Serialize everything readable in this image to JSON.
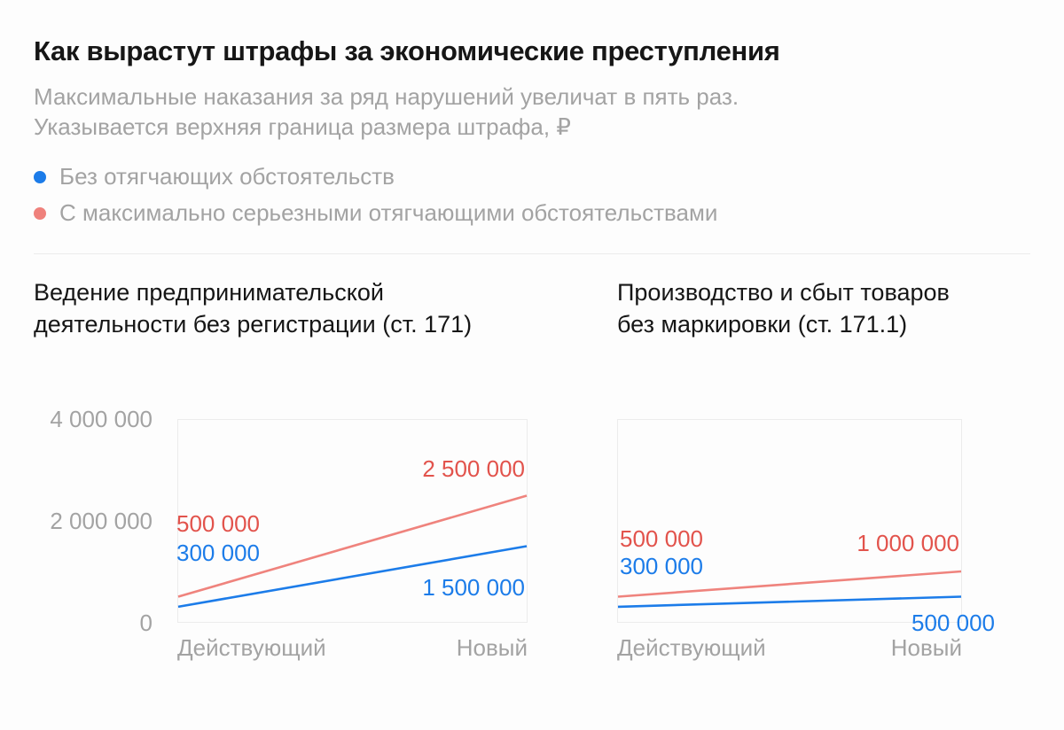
{
  "header": {
    "title": "Как вырастут штрафы за экономические преступления",
    "subtitle_line1": "Максимальные наказания за ряд нарушений увеличат в пять раз.",
    "subtitle_line2": "Указывается верхняя граница размера штрафа, ₽"
  },
  "legend": {
    "items": [
      {
        "label": "Без отягчающих обстоятельств",
        "color": "#1c7ce9",
        "icon": "blue-dot-icon"
      },
      {
        "label": "С максимально серьезными отягчающими обстоятельствами",
        "color": "#ef817c",
        "icon": "red-dot-icon"
      }
    ]
  },
  "colors": {
    "blue": "#1c7ce9",
    "red-line": "#ef837d",
    "red-label": "#e2534c",
    "grid": "#ececec",
    "muted-text": "#a3a3a3",
    "title-text": "#161616",
    "background": "#fdfdfd"
  },
  "chart_data": [
    {
      "type": "line",
      "title": "Ведение предпринимательской деятельности без регистрации (ст. 171)",
      "categories": [
        "Действующий",
        "Новый"
      ],
      "ylim": [
        0,
        4000000
      ],
      "yticks": [
        0,
        2000000,
        4000000
      ],
      "ytick_labels": [
        "0",
        "2 000 000",
        "4 000 000"
      ],
      "legend_position": "top-left-of-page",
      "grid": "plot box border only",
      "series": [
        {
          "name": "Без отягчающих обстоятельств",
          "color_key": "blue",
          "line_color": "#1c7ce9",
          "values": [
            300000,
            1500000
          ],
          "point_labels": [
            "300 000",
            "1 500 000"
          ]
        },
        {
          "name": "С максимально серьезными отягчающими обстоятельствами",
          "color_key": "red",
          "line_color": "#ef837d",
          "values": [
            500000,
            2500000
          ],
          "point_labels": [
            "500 000",
            "2 500 000"
          ]
        }
      ]
    },
    {
      "type": "line",
      "title": "Производство и сбыт товаров без маркировки (ст. 171.1)",
      "categories": [
        "Действующий",
        "Новый"
      ],
      "ylim": [
        0,
        4000000
      ],
      "yticks": [],
      "ytick_labels": [],
      "grid": "plot box border only",
      "series": [
        {
          "name": "Без отягчающих обстоятельств",
          "color_key": "blue",
          "line_color": "#1c7ce9",
          "values": [
            300000,
            500000
          ],
          "point_labels": [
            "300 000",
            "500 000"
          ]
        },
        {
          "name": "С максимально серьезными отягчающими обстоятельствами",
          "color_key": "red",
          "line_color": "#ef837d",
          "values": [
            500000,
            1000000
          ],
          "point_labels": [
            "500 000",
            "1 000 000"
          ]
        }
      ]
    }
  ]
}
